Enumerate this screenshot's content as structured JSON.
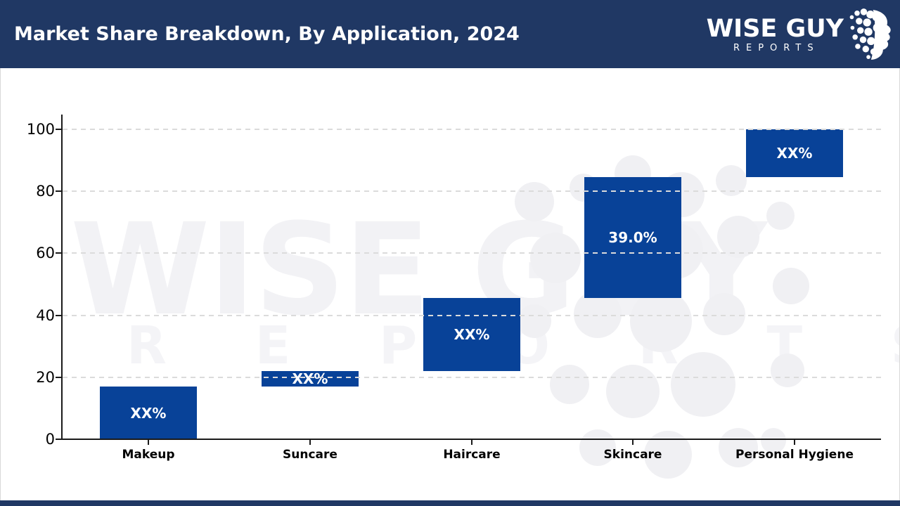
{
  "header": {
    "title": "Market Share Breakdown, By Application, 2024",
    "logo": {
      "line1": "WISE GUY",
      "line2": "REPORTS"
    }
  },
  "watermark": {
    "line1": "WISE GUY",
    "line2": "R E P O R T S"
  },
  "chart_data": {
    "type": "bar",
    "subtype": "waterfall",
    "title": "Market Share Breakdown, By Application, 2024",
    "categories": [
      "Makeup",
      "Suncare",
      "Haircare",
      "Skincare",
      "Personal Hygiene"
    ],
    "segments": [
      {
        "category": "Makeup",
        "start": 0,
        "end": 17,
        "label": "XX%"
      },
      {
        "category": "Suncare",
        "start": 17,
        "end": 22,
        "label": "XX%"
      },
      {
        "category": "Haircare",
        "start": 22,
        "end": 45.5,
        "label": "XX%"
      },
      {
        "category": "Skincare",
        "start": 45.5,
        "end": 84.5,
        "label": "39.0%"
      },
      {
        "category": "Personal Hygiene",
        "start": 84.5,
        "end": 100,
        "label": "XX%"
      }
    ],
    "yticks": [
      0,
      20,
      40,
      60,
      80,
      100
    ],
    "ylim": [
      0,
      105
    ],
    "grid": true,
    "grid_style": "dashed",
    "legend": "none",
    "bar_color": "#084298",
    "bar_label_color": "#ffffff"
  },
  "colors": {
    "header_bg": "#203864",
    "footer_bg": "#203864",
    "title_text": "#ffffff",
    "bar": "#084298",
    "gridline": "#dbdbdb",
    "axis": "#1a1a1a",
    "watermark": "#f2f2f5"
  }
}
